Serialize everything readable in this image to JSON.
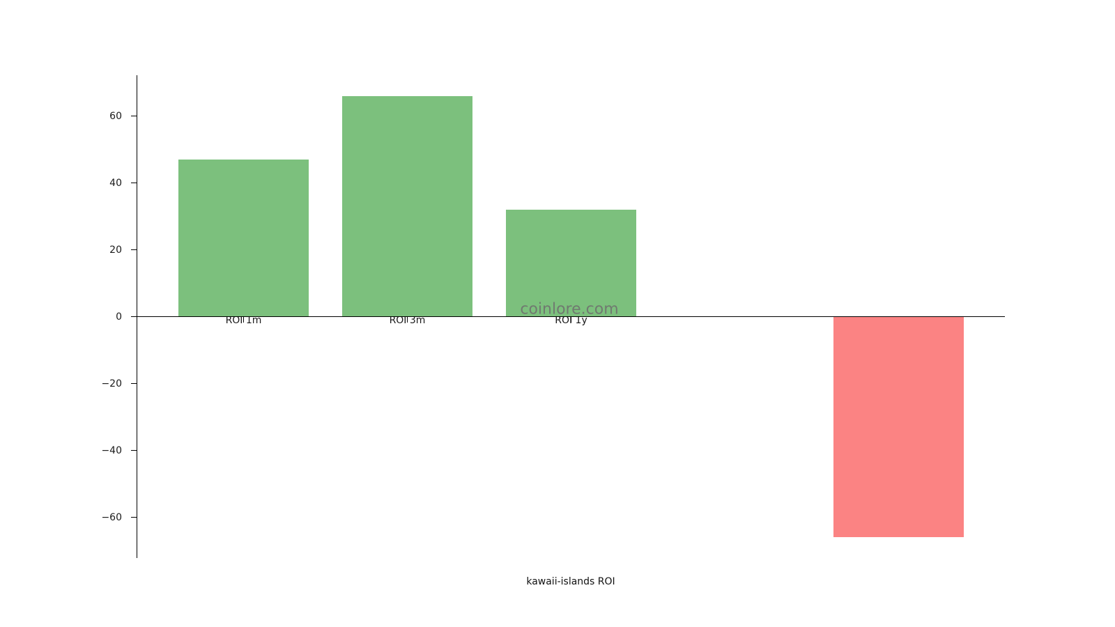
{
  "title": "kawaii-islands ROI",
  "watermark": "coinlore.com",
  "colors": {
    "positive_bar": "#7cc07d",
    "negative_bar": "#fb8383",
    "axis": "#000000",
    "tick_text": "#1a1a1a",
    "watermark_text": "#6e6e6e"
  },
  "chart_data": {
    "type": "bar",
    "title": "kawaii-islands ROI",
    "categories": [
      "ROI 1m",
      "ROI 3m",
      "ROI 1y",
      "",
      ""
    ],
    "values": [
      47,
      66,
      32,
      null,
      -66
    ],
    "bar_colors": [
      "#7cc07d",
      "#7cc07d",
      "#7cc07d",
      null,
      "#fb8383"
    ],
    "xlabel": "",
    "ylabel": "",
    "ylim": [
      -72.3,
      72.3
    ],
    "yticks": [
      {
        "value": 60,
        "label": "60"
      },
      {
        "value": 40,
        "label": "40"
      },
      {
        "value": 20,
        "label": "20"
      },
      {
        "value": 0,
        "label": "0"
      },
      {
        "value": -20,
        "label": "−20"
      },
      {
        "value": -40,
        "label": "−40"
      },
      {
        "value": -60,
        "label": "−60"
      }
    ],
    "grid": false,
    "legend": false,
    "watermark": "coinlore.com"
  }
}
